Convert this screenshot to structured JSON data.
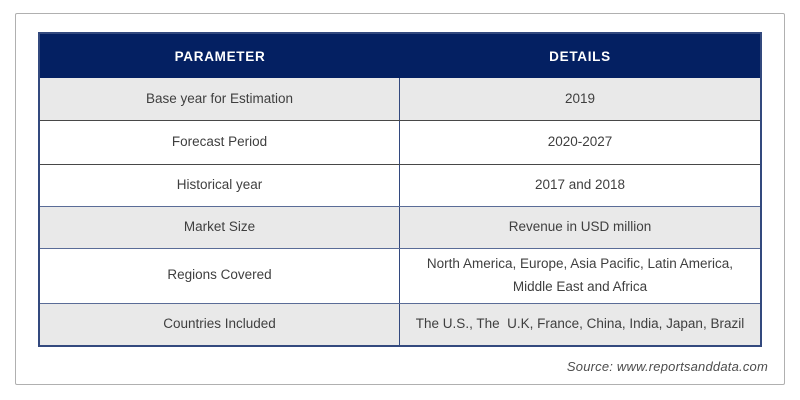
{
  "table": {
    "header": {
      "parameter": "PARAMETER",
      "details": "DETAILS"
    },
    "rows": [
      {
        "parameter": "Base year for Estimation",
        "details": "2019"
      },
      {
        "parameter": "Forecast Period",
        "details": "2020-2027"
      },
      {
        "parameter": "Historical year",
        "details": "2017 and 2018"
      },
      {
        "parameter": "Market Size",
        "details": "Revenue in USD million"
      },
      {
        "parameter": "Regions Covered",
        "details": "North America, Europe, Asia Pacific, Latin America, Middle East and Africa"
      },
      {
        "parameter": "Countries Included",
        "details": "The U.S., The  U.K, France, China, India, Japan, Brazil"
      }
    ]
  },
  "source": {
    "label": "Source: www.reportsanddata.com"
  },
  "colors": {
    "header_bg": "#042062",
    "header_text": "#ffffff",
    "row_shaded_bg": "#e9e9e9",
    "row_bg": "#ffffff",
    "table_border": "#33497e",
    "body_text": "#3f3f3f",
    "frame_border": "#b0b0b0",
    "source_text": "#4d4d4d"
  }
}
